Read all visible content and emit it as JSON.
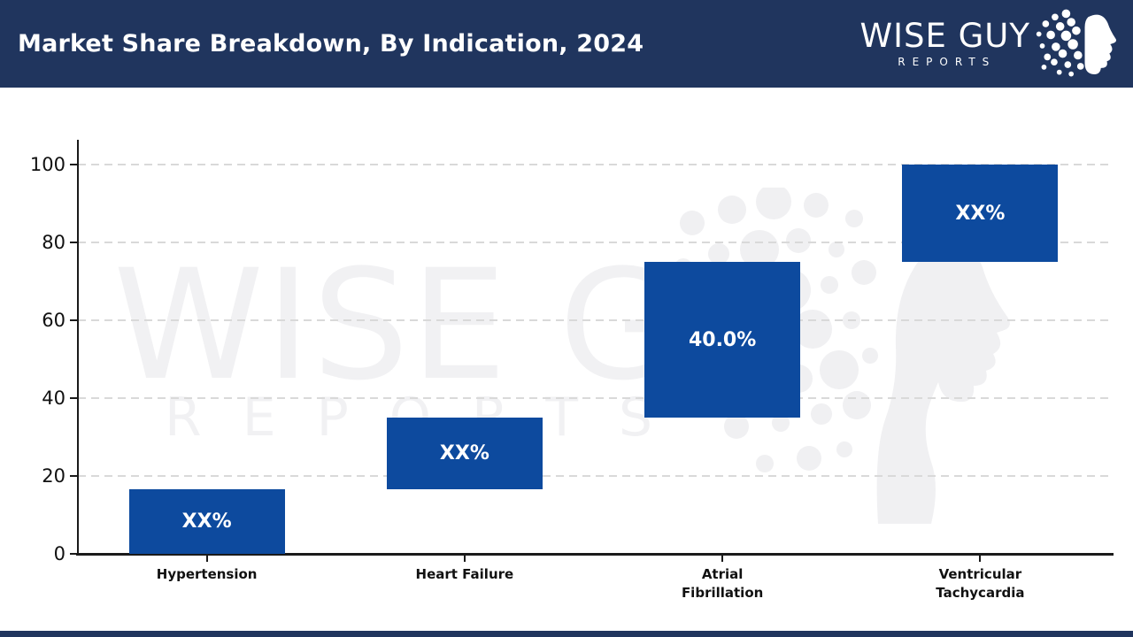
{
  "header": {
    "title": "Market Share Breakdown, By Indication, 2024",
    "logo": {
      "line1": "WISE GUY",
      "line2": "REPORTS"
    }
  },
  "watermark": {
    "line1": "WISE GU",
    "line2": "REPORTS"
  },
  "colors": {
    "header_navy": "#20355e",
    "bar_blue": "#0d4a9e",
    "gridline": "#d9d9d9",
    "watermark_gray": "#f1f1f3"
  },
  "chart_data": {
    "type": "bar",
    "subtype": "floating-segment-bars",
    "title": "Market Share Breakdown, By Indication, 2024",
    "categories": [
      "Hypertension",
      "Heart Failure",
      "Atrial\nFibrillation",
      "Ventricular\nTachycardia"
    ],
    "bars": [
      {
        "category": "Hypertension",
        "start": 0,
        "end": 16.5,
        "label": "XX%"
      },
      {
        "category": "Heart Failure",
        "start": 16.5,
        "end": 35,
        "label": "XX%"
      },
      {
        "category": "Atrial Fibrillation",
        "start": 35,
        "end": 75,
        "label": "40.0%"
      },
      {
        "category": "Ventricular Tachycardia",
        "start": 75,
        "end": 100,
        "label": "XX%"
      }
    ],
    "yticks": [
      0,
      20,
      40,
      60,
      80,
      100
    ],
    "ytick_labels": [
      "0",
      "20",
      "40",
      "60",
      "80",
      "100"
    ],
    "ylim": [
      0,
      106
    ],
    "xlabel": "",
    "ylabel": "",
    "grid": "horizontal-dashed",
    "legend": "none"
  }
}
